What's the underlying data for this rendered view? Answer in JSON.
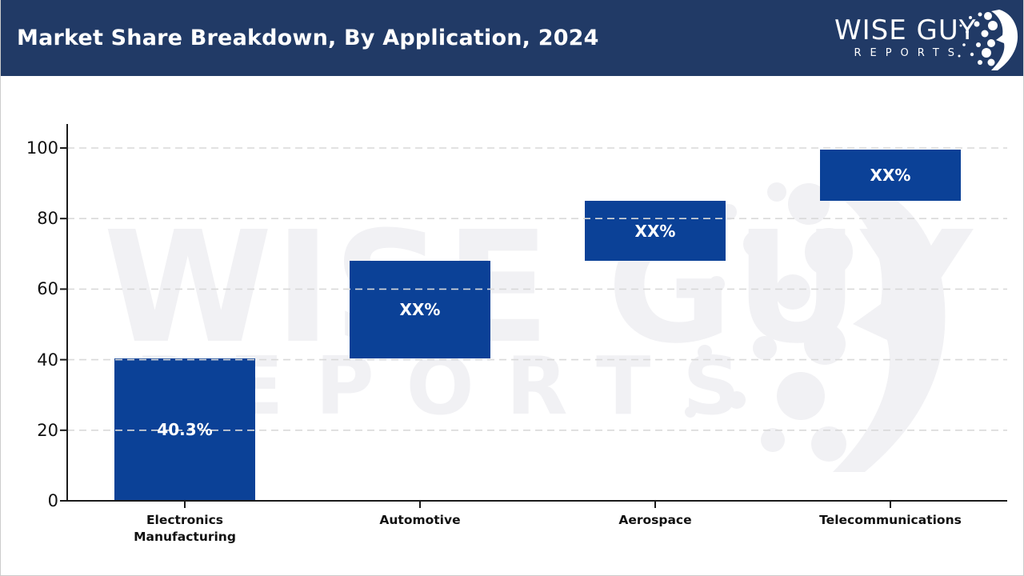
{
  "header": {
    "title": "Market Share Breakdown, By Application, 2024",
    "logo": {
      "line1": "WISE GUY",
      "line2": "REPORTS",
      "face_icon": "dotted-head-profile"
    },
    "bg_color": "#213a66"
  },
  "watermark": {
    "line1": "WISE GUY",
    "line2": "REPORTS",
    "face_icon": "dotted-head-profile"
  },
  "colors": {
    "header_bg": "#213a66",
    "bar": "#0b4197",
    "grid_line": "#d9d9d9",
    "axis": "#1a1a1a",
    "bar_label": "#ffffff",
    "watermark": "#f1f1f4"
  },
  "chart_data": {
    "type": "bar",
    "subtype": "waterfall",
    "title": "Market Share Breakdown, By Application, 2024",
    "categories": [
      "Electronics Manufacturing",
      "Automotive",
      "Aerospace",
      "Telecommunications"
    ],
    "segments": [
      {
        "category": "Electronics Manufacturing",
        "start": 0,
        "end": 40.3,
        "value_label": "40.3%"
      },
      {
        "category": "Automotive",
        "start": 40.3,
        "end": 68,
        "value_label": "XX%"
      },
      {
        "category": "Aerospace",
        "start": 68,
        "end": 85,
        "value_label": "XX%"
      },
      {
        "category": "Telecommunications",
        "start": 85,
        "end": 99.5,
        "value_label": "XX%"
      }
    ],
    "xlabel": "",
    "ylabel": "",
    "ylim": [
      0,
      105
    ],
    "yticks": [
      0,
      20,
      40,
      60,
      80,
      100
    ],
    "grid": "horizontal dashed",
    "legend": "none",
    "bar_color": "#0b4197",
    "bar_label_color": "#ffffff"
  }
}
